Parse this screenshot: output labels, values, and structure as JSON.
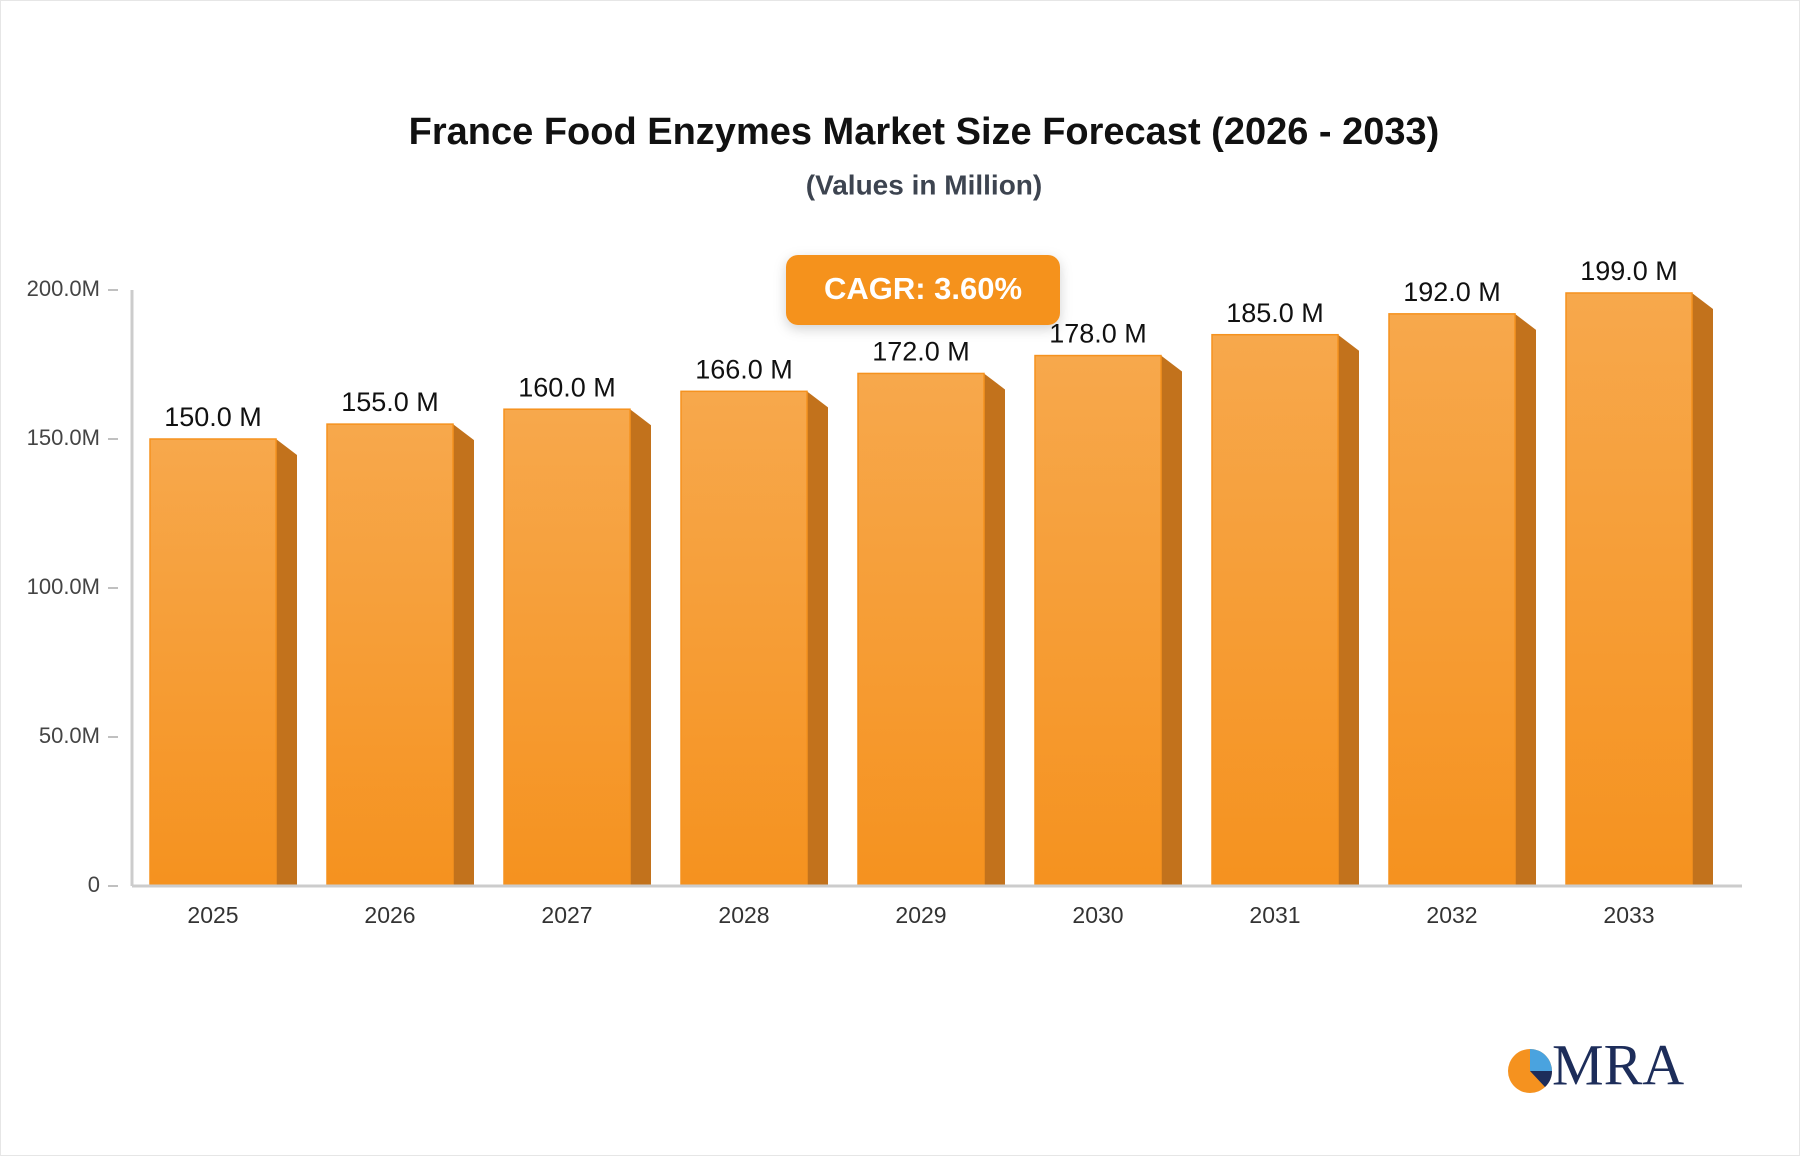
{
  "chart_data": {
    "type": "bar",
    "title": "France Food Enzymes Market Size Forecast (2026 - 2033)",
    "subtitle": "(Values in Million)",
    "annotation": "CAGR: 3.60%",
    "logo": "MRA",
    "categories": [
      "2025",
      "2026",
      "2027",
      "2028",
      "2029",
      "2030",
      "2031",
      "2032",
      "2033"
    ],
    "values": [
      150,
      155,
      160,
      166,
      172,
      178,
      185,
      192,
      199
    ],
    "value_labels": [
      "150.0 M",
      "155.0 M",
      "160.0 M",
      "166.0 M",
      "172.0 M",
      "178.0 M",
      "185.0 M",
      "192.0 M",
      "199.0 M"
    ],
    "color": "#f5921f",
    "ylim": [
      0,
      200
    ],
    "yticks": [
      {
        "value": 0,
        "label": "0"
      },
      {
        "value": 50,
        "label": "50.0M"
      },
      {
        "value": 100,
        "label": "100.0M"
      },
      {
        "value": 150,
        "label": "150.0M"
      },
      {
        "value": 200,
        "label": "200.0M"
      }
    ],
    "grid": false
  }
}
